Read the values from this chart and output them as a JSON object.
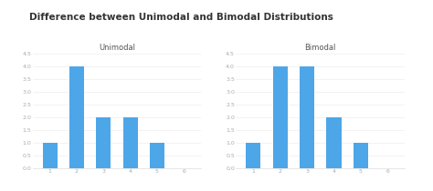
{
  "title": "Difference between Unimodal and Bimodal Distributions",
  "unimodal_title": "Unimodal",
  "bimodal_title": "Bimodal",
  "unimodal_x": [
    1,
    2,
    3,
    4,
    5,
    6
  ],
  "unimodal_y": [
    1,
    4,
    2,
    2,
    1,
    0
  ],
  "bimodal_x": [
    1,
    2,
    3,
    4,
    5,
    6
  ],
  "bimodal_y": [
    1,
    4,
    4,
    2,
    1,
    0
  ],
  "bar_color": "#4da6e8",
  "bg_color": "#ffffff",
  "ylim": [
    0,
    4.5
  ],
  "yticks": [
    0,
    0.5,
    1,
    1.5,
    2,
    2.5,
    3,
    3.5,
    4,
    4.5
  ],
  "xticks": [
    1,
    2,
    3,
    4,
    5,
    6
  ],
  "title_fontsize": 7.5,
  "subtitle_fontsize": 6,
  "tick_fontsize": 4.5,
  "icon_color": "#3a7fd5",
  "grid_color": "#e8e8e8",
  "title_color": "#333333",
  "tick_color": "#aaaaaa"
}
